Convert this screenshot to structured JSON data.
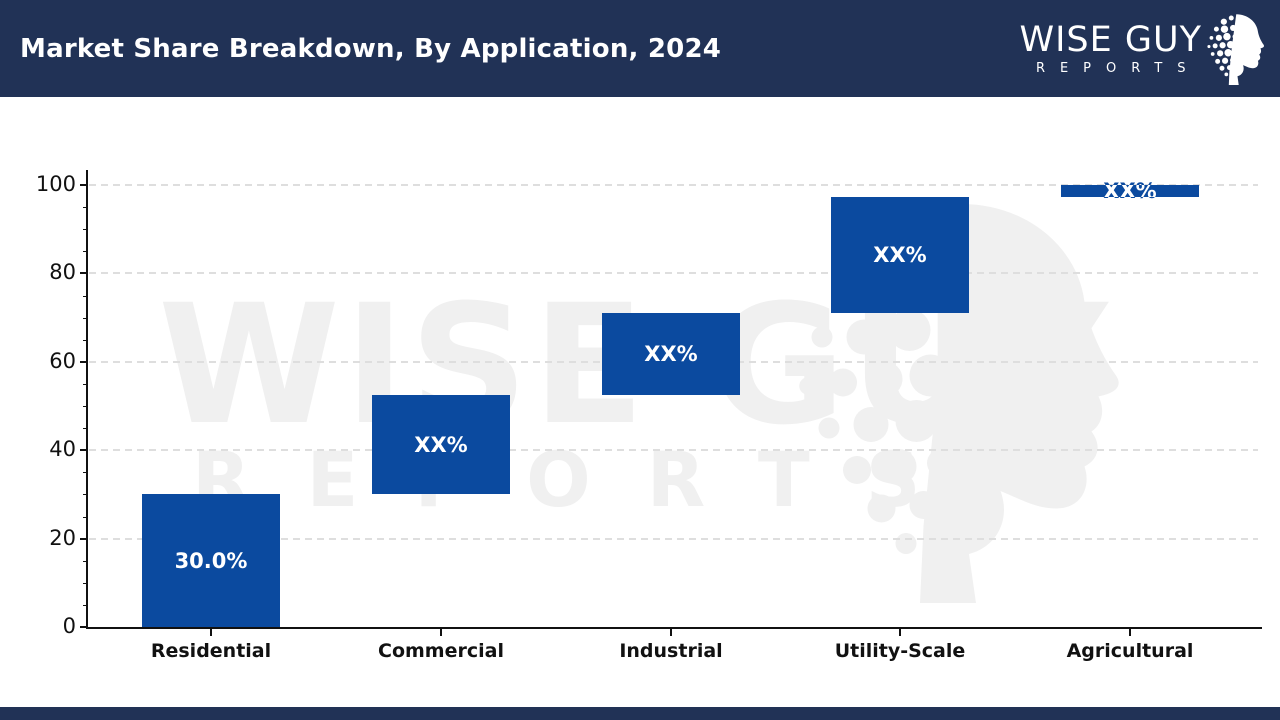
{
  "header": {
    "title": "Market Share Breakdown, By Application, 2024"
  },
  "logo": {
    "wordmark": "WISE GUY",
    "sub": "REPORTS",
    "head_icon": "dotted-head-profile"
  },
  "watermark": {
    "line1": "WISE GUY",
    "line2": "REPORTS",
    "head_icon": "dotted-head-profile"
  },
  "colors": {
    "header_bg": "#213256",
    "footer_bg": "#213256",
    "bar": "#0B4A9F",
    "bar_label": "#FFFFFF",
    "grid": "#DEDEDE",
    "axis": "#111111",
    "watermark": "#F0F0F0"
  },
  "chart_data": {
    "type": "bar",
    "subtype": "waterfall",
    "title": "Market Share Breakdown, By Application, 2024",
    "categories": [
      "Residential",
      "Commercial",
      "Industrial",
      "Utility-Scale",
      "Agricultural"
    ],
    "segments": [
      {
        "category": "Residential",
        "start": 0,
        "end": 30,
        "label": "30.0%"
      },
      {
        "category": "Commercial",
        "start": 30,
        "end": 52.5,
        "label": "XX%"
      },
      {
        "category": "Industrial",
        "start": 52.5,
        "end": 71,
        "label": "XX%"
      },
      {
        "category": "Utility-Scale",
        "start": 71,
        "end": 97.3,
        "label": "XX%"
      },
      {
        "category": "Agricultural",
        "start": 97.3,
        "end": 100,
        "label": "XX%"
      }
    ],
    "xlabel": "",
    "ylabel": "",
    "ylim": [
      0,
      103
    ],
    "y_ticks": [
      0,
      20,
      40,
      60,
      80,
      100
    ],
    "y_minor_tick_step": 5,
    "grid": "horizontal-dashed",
    "legend": "none",
    "bar_color": "#0B4A9F",
    "bar_label_color": "#FFFFFF"
  }
}
